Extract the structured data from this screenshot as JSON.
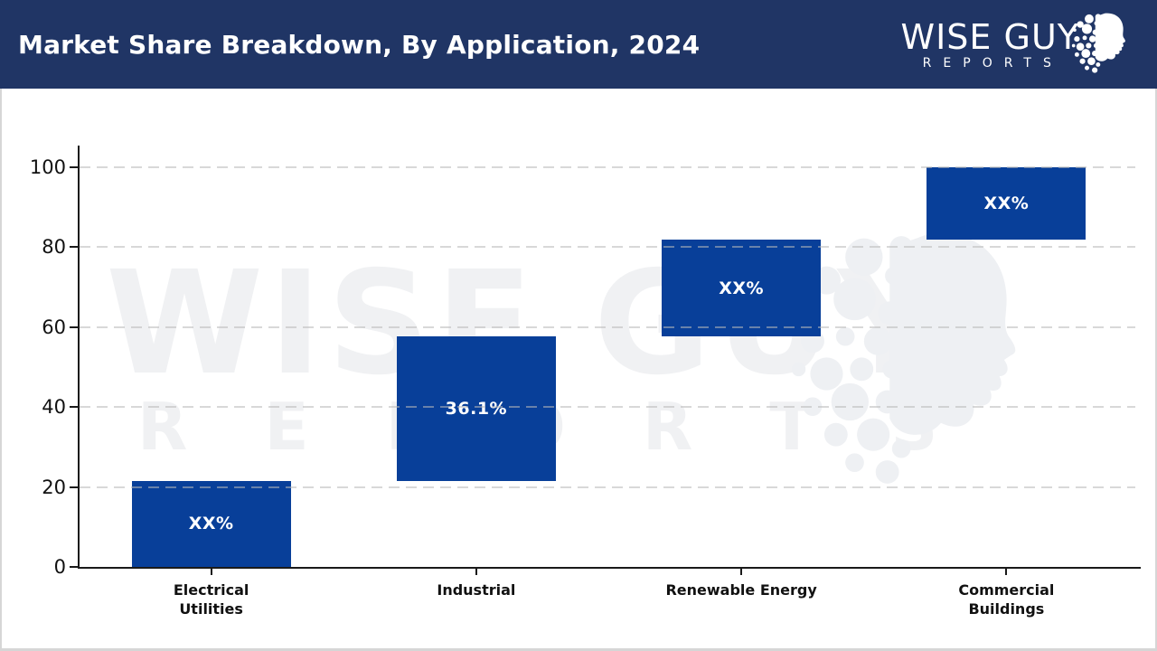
{
  "header": {
    "title": "Market Share Breakdown, By Application, 2024",
    "logo": {
      "line1": "WISE GUY",
      "line2": "REPORTS"
    }
  },
  "watermark": {
    "line1": "WISE GUY",
    "line2": "R E P O R T S"
  },
  "colors": {
    "header_bg": "#203565",
    "bar": "#083f99",
    "axis": "#1a1a1a",
    "grid": "#bebebe",
    "bar_label": "#ffffff",
    "watermark": "#f0f1f3"
  },
  "chart_data": {
    "type": "bar",
    "subtype": "waterfall",
    "title": "Market Share Breakdown, By Application, 2024",
    "categories": [
      "Electrical\nUtilities",
      "Industrial",
      "Renewable Energy",
      "Commercial\nBuildings"
    ],
    "series": [
      {
        "name": "Market share (%)",
        "segments": [
          {
            "category": "Electrical Utilities",
            "start": 0,
            "end": 21.5,
            "label": "XX%"
          },
          {
            "category": "Industrial",
            "start": 21.5,
            "end": 57.6,
            "label": "36.1%"
          },
          {
            "category": "Renewable Energy",
            "start": 57.6,
            "end": 82.0,
            "label": "XX%"
          },
          {
            "category": "Commercial Buildings",
            "start": 82.0,
            "end": 100.0,
            "label": "XX%"
          }
        ]
      }
    ],
    "ylim": [
      0,
      105
    ],
    "yticks": [
      0,
      20,
      40,
      60,
      80,
      100
    ],
    "xlabel": "",
    "ylabel": "",
    "grid": "horizontal-dashed",
    "legend": "none"
  }
}
